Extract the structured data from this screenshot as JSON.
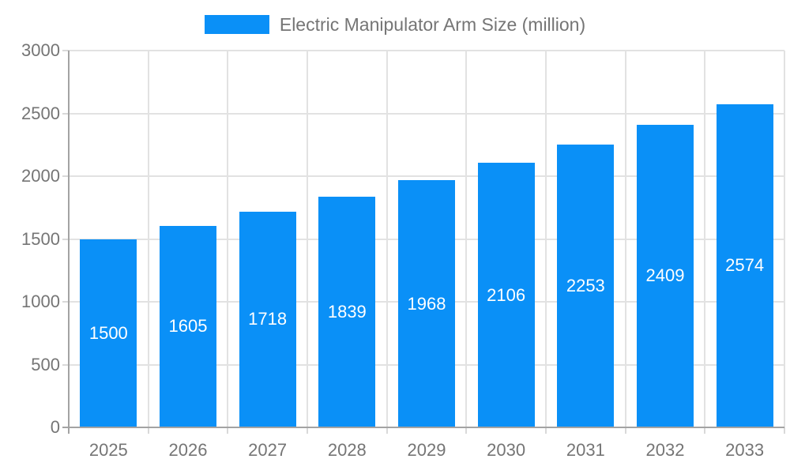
{
  "chart_data": {
    "type": "bar",
    "title": "Electric Manipulator Arm Size (million)",
    "legend_entries": [
      "Electric Manipulator Arm Size (million)"
    ],
    "legend_position": "top-center",
    "categories": [
      "2025",
      "2026",
      "2027",
      "2028",
      "2029",
      "2030",
      "2031",
      "2032",
      "2033"
    ],
    "series": [
      {
        "name": "Electric Manipulator Arm Size (million)",
        "values": [
          1500,
          1605,
          1718,
          1839,
          1968,
          2106,
          2253,
          2409,
          2574
        ]
      }
    ],
    "value_labels_shown": true,
    "xlabel": "",
    "ylabel": "",
    "ylim": [
      0,
      3000
    ],
    "yticks": [
      0,
      500,
      1000,
      1500,
      2000,
      2500,
      3000
    ],
    "grid": true,
    "colors": {
      "bar": "#0A90F7",
      "value_label": "#ffffff",
      "axis_label": "#757575",
      "legend_text": "#757575",
      "gridline": "#e2e2e2",
      "tick": "#d9d9d9",
      "axis_line": "#a3a3a3",
      "background": "#ffffff"
    }
  }
}
